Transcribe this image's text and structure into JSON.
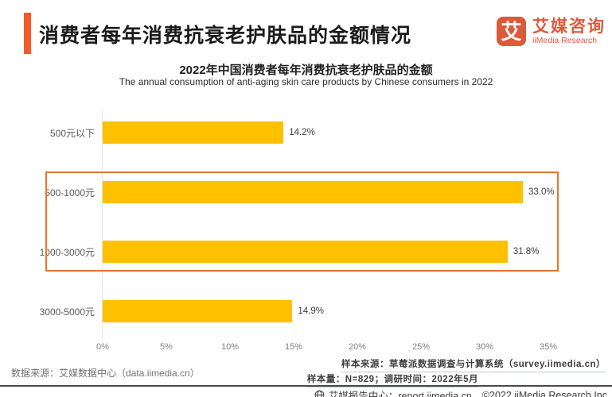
{
  "header": {
    "title": "消费者每年消费抗衰老护肤品的金额情况",
    "accent_color": "#F2592B",
    "logo": {
      "mark": "艾",
      "name_cn": "艾媒咨询",
      "name_en": "iiMedia Research",
      "color": "#DC5A3C"
    }
  },
  "chart": {
    "title_cn": "2022年中国消费者每年消费抗衰老护肤品的金额",
    "title_en": "The annual consumption of anti-aging skin care products by Chinese consumers in 2022"
  },
  "chart_data": {
    "type": "bar",
    "orientation": "horizontal",
    "title": "2022年中国消费者每年消费抗衰老护肤品的金额",
    "subtitle": "The annual consumption of anti-aging skin care products by Chinese consumers in 2022",
    "categories": [
      "500元以下",
      "500-1000元",
      "1000-3000元",
      "3000-5000元"
    ],
    "values": [
      14.2,
      33.0,
      31.8,
      14.9
    ],
    "value_labels": [
      "14.2%",
      "33.0%",
      "31.8%",
      "14.9%"
    ],
    "bar_color": "#FFC000",
    "x_ticks": [
      "0%",
      "5%",
      "10%",
      "15%",
      "20%",
      "25%",
      "30%",
      "35%"
    ],
    "xlim": [
      0,
      35
    ],
    "grid": false,
    "legend": false,
    "highlight": {
      "indices": [
        1,
        2
      ],
      "border_color": "#E8742C"
    }
  },
  "footnotes": {
    "data_source": "数据来源：艾媒数据中心（data.iimedia.cn）",
    "sample_source": "样本来源：草莓派数据调查与计算系统（survey.iimedia.cn）",
    "sample_info": "样本量：N=829；调研时间：2022年5月"
  },
  "footer": {
    "report_center": "艾媒报告中心：report.iimedia.cn",
    "copyright": "©2022  iiMedia Research Inc"
  }
}
